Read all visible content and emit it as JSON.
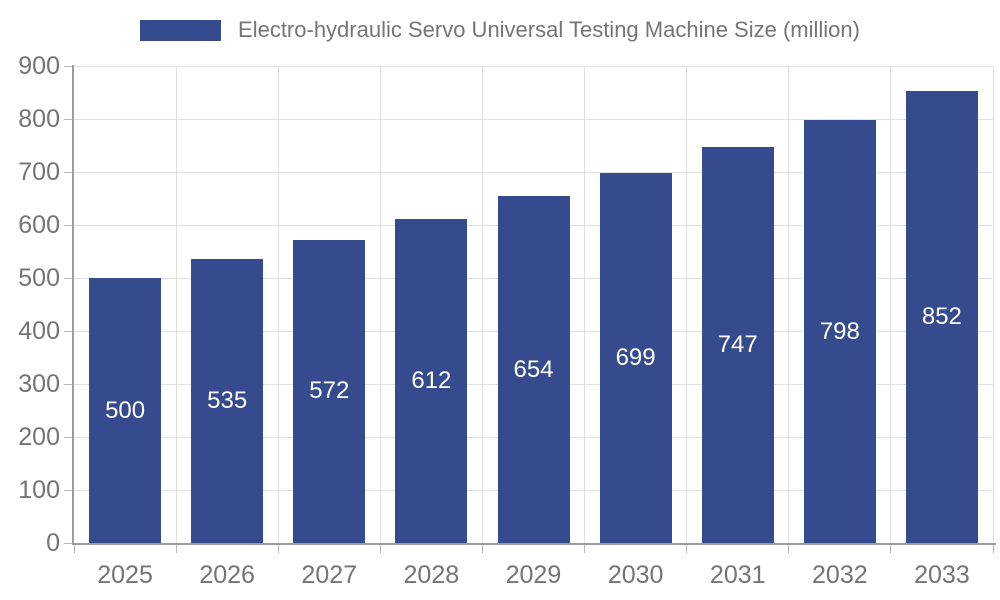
{
  "legend": {
    "label": "Electro-hydraulic Servo Universal Testing Machine Size (million)"
  },
  "colors": {
    "background": "#FFFFFF",
    "bar": "#364A8E",
    "bar_label": "#FFFFFF",
    "grid": "#E1E1E1",
    "axis": "#9C9C9C",
    "tick": "#B5B5B5",
    "text": "#747474",
    "legend_text": "#757575"
  },
  "chart_data": {
    "type": "bar",
    "title": "",
    "xlabel": "",
    "ylabel": "",
    "categories": [
      "2025",
      "2026",
      "2027",
      "2028",
      "2029",
      "2030",
      "2031",
      "2032",
      "2033"
    ],
    "series": [
      {
        "name": "Electro-hydraulic Servo Universal Testing Machine Size (million)",
        "values": [
          500,
          535,
          572,
          612,
          654,
          699,
          747,
          798,
          852
        ]
      }
    ],
    "ylim": [
      0,
      900
    ],
    "ytick_interval": 100,
    "ytick_labels": [
      "0",
      "100",
      "200",
      "300",
      "400",
      "500",
      "600",
      "700",
      "800",
      "900"
    ],
    "grid": true,
    "vertical_gridlines": true,
    "legend_position": "top-center",
    "value_labels": "inside-center"
  }
}
